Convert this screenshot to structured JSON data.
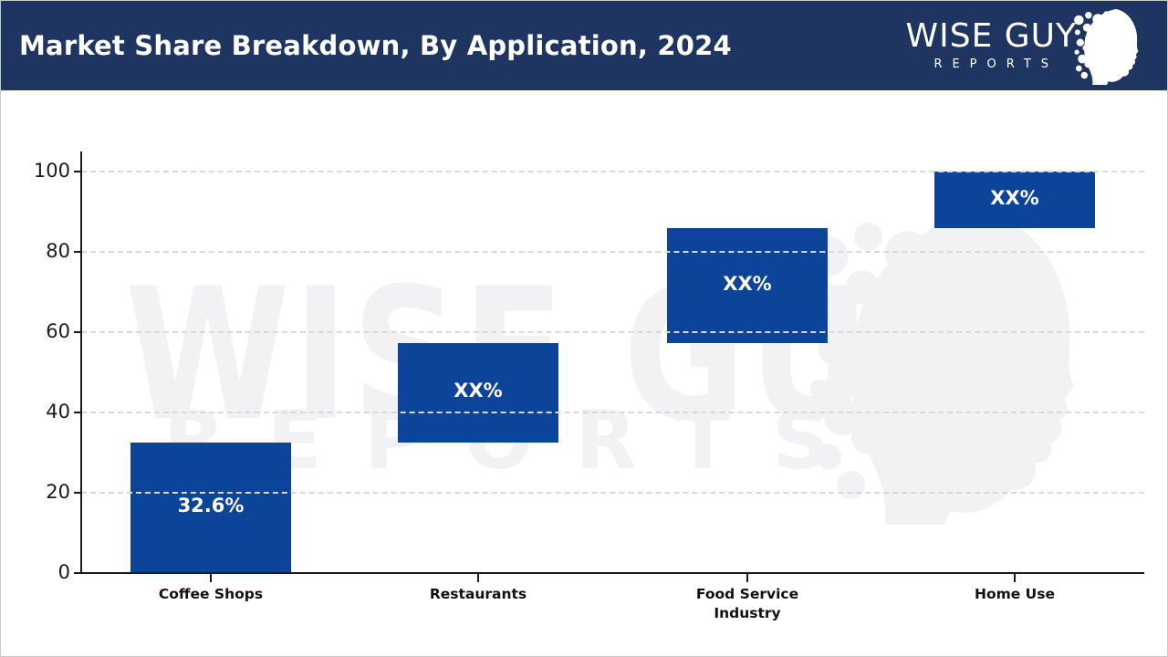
{
  "header": {
    "title": "Market Share Breakdown, By Application, 2024",
    "bg_color": "#1f3561",
    "logo": {
      "line1": "WISE GUY",
      "line2": "REPORTS"
    }
  },
  "watermark": {
    "line1": "WISE GU",
    "line2": "REPORTS"
  },
  "chart_data": {
    "type": "bar",
    "subtype": "waterfall-floating-bars",
    "title": "Market Share Breakdown, By Application, 2024",
    "categories": [
      "Coffee Shops",
      "Restaurants",
      "Food Service Industry",
      "Home Use"
    ],
    "segments": [
      {
        "category": "Coffee Shops",
        "start": 0,
        "end": 32.6,
        "size": 32.6,
        "label": "32.6%"
      },
      {
        "category": "Restaurants",
        "start": 32.6,
        "end": 57.2,
        "size": 24.6,
        "label": "XX%"
      },
      {
        "category": "Food Service Industry",
        "start": 57.2,
        "end": 85.8,
        "size": 28.6,
        "label": "XX%"
      },
      {
        "category": "Home Use",
        "start": 85.8,
        "end": 100,
        "size": 14.2,
        "label": "XX%"
      }
    ],
    "xlabel": "",
    "ylabel": "",
    "yticks": [
      0,
      20,
      40,
      60,
      80,
      100
    ],
    "ylim": [
      0,
      105
    ],
    "grid": "dashed-horizontal",
    "legend": "none",
    "bar_color": "#0b4499",
    "bar_label_color": "#ffffff",
    "axis_color": "#1a1a1a",
    "gridline_color": "#d9d9d9"
  }
}
